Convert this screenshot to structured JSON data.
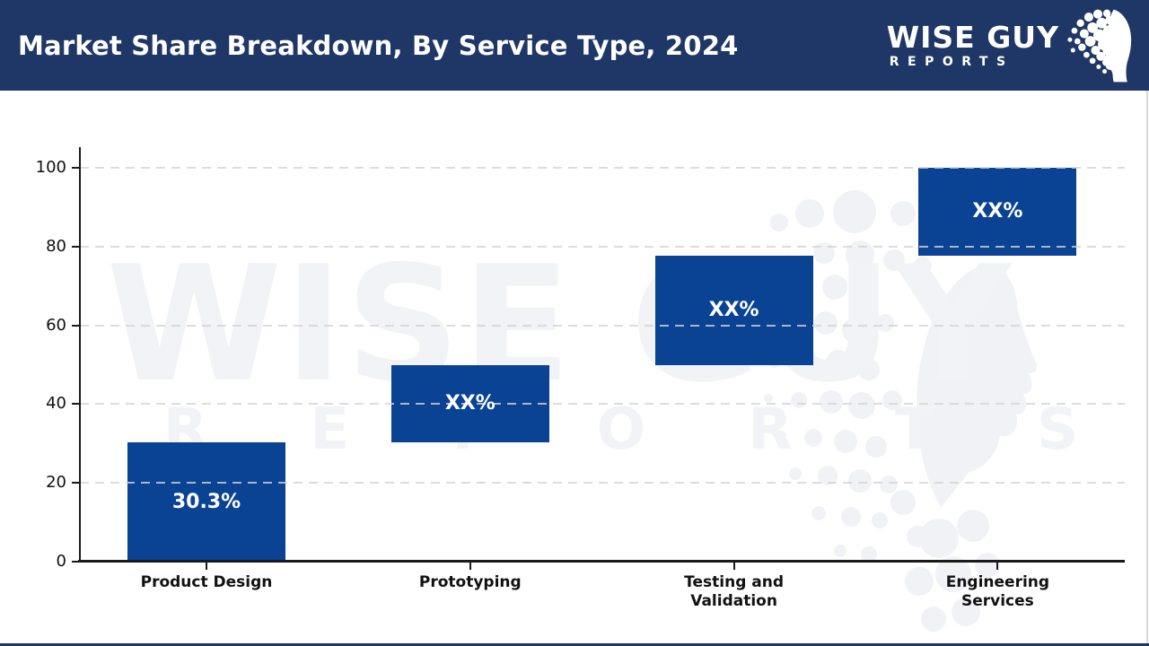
{
  "header": {
    "title": "Market Share Breakdown, By Service Type, 2024",
    "logo": {
      "wordmark": "WISE GUY",
      "reports": "REPORTS"
    }
  },
  "watermark": {
    "wordmark": "WISE GUY",
    "reports": "R E P O R T S"
  },
  "footer": {},
  "colors": {
    "header_bg": "#1f3766",
    "bar": "#0a4294",
    "grid": "#d4d4d4",
    "axis": "#1a1a1a",
    "bar_label": "#ffffff",
    "watermark": "#f2f3f6"
  },
  "chart_data": {
    "type": "bar",
    "subtype": "waterfall",
    "title": "Market Share Breakdown, By Service Type, 2024",
    "xlabel": "",
    "ylabel": "",
    "categories": [
      "Product Design",
      "Prototyping",
      "Testing and Validation",
      "Engineering Services"
    ],
    "categories_lines": [
      [
        "Product Design"
      ],
      [
        "Prototyping"
      ],
      [
        "Testing and",
        "Validation"
      ],
      [
        "Engineering",
        "Services"
      ]
    ],
    "series": [
      {
        "name": "Market Share (%)",
        "segments": [
          {
            "category": "Product Design",
            "start": 0,
            "end": 30.3,
            "label": "30.3%"
          },
          {
            "category": "Prototyping",
            "start": 30.3,
            "end": 49.9,
            "label": "XX%"
          },
          {
            "category": "Testing and Validation",
            "start": 49.9,
            "end": 77.7,
            "label": "XX%"
          },
          {
            "category": "Engineering Services",
            "start": 77.7,
            "end": 100,
            "label": "XX%"
          }
        ]
      }
    ],
    "yticks": [
      0,
      20,
      40,
      60,
      80,
      100
    ],
    "ylim": [
      0,
      100
    ],
    "grid": "dashed-horizontal",
    "legend": "none",
    "bar_color": "#0a4294"
  }
}
